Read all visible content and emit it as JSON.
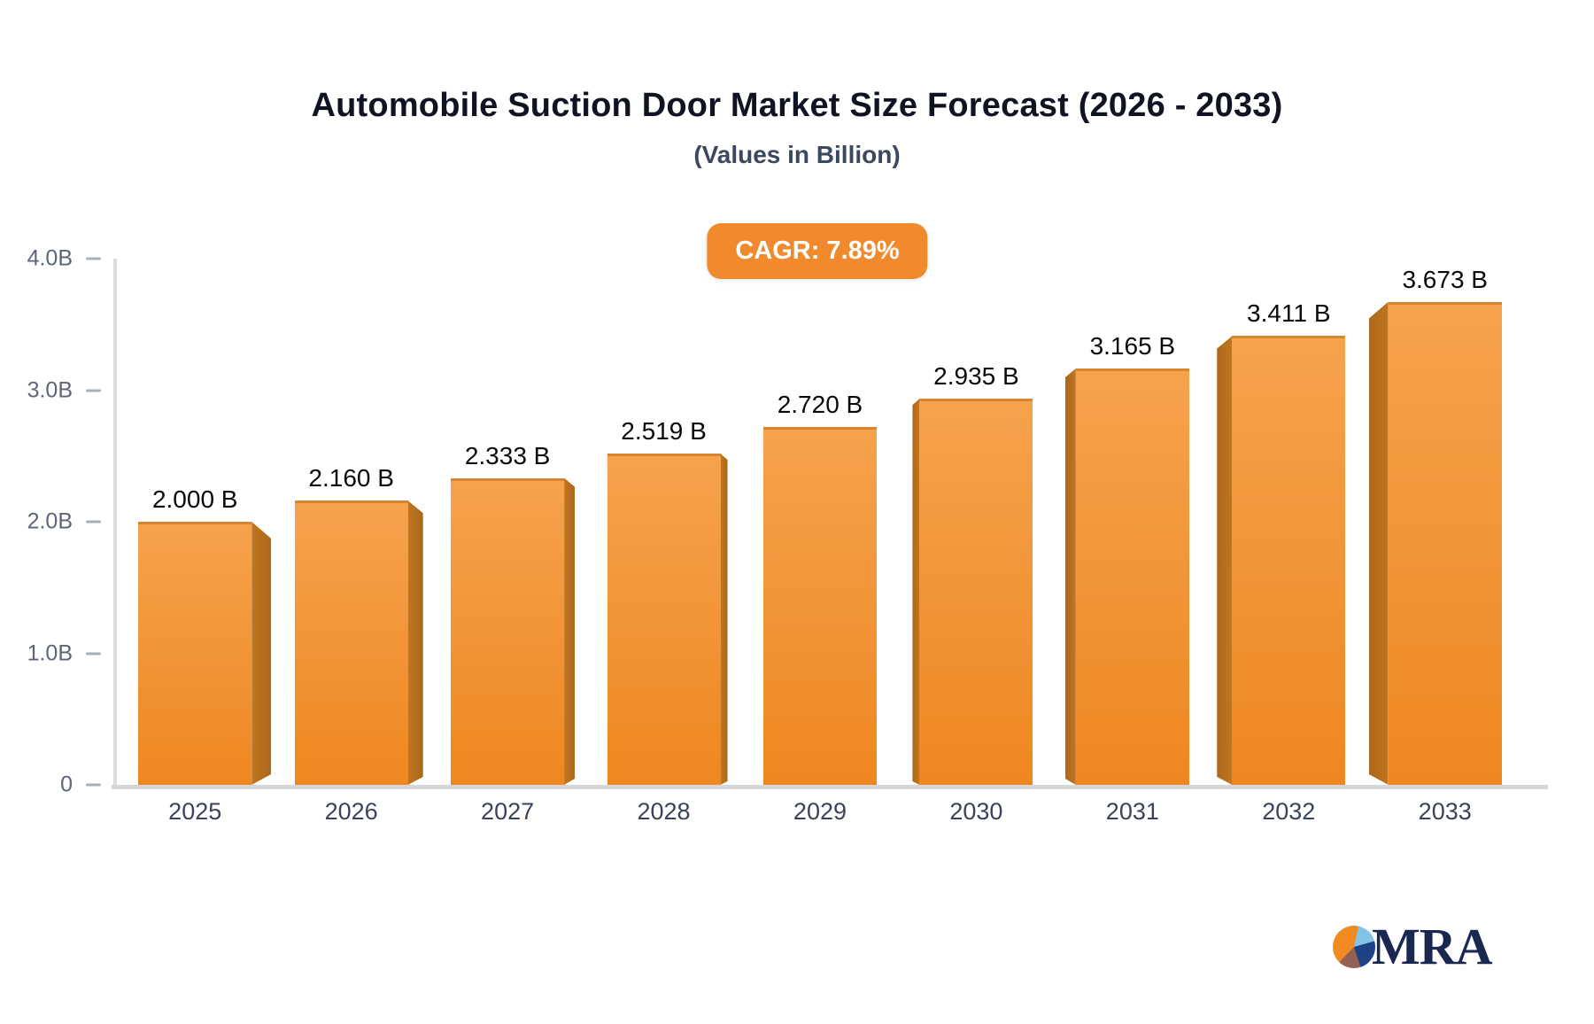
{
  "header": {
    "title": "Automobile Suction Door Market Size Forecast (2026 - 2033)",
    "subtitle": "(Values in Billion)",
    "cagr_badge": "CAGR: 7.89%"
  },
  "chart_data": {
    "type": "bar",
    "title": "Automobile Suction Door Market Size Forecast (2026 - 2033)",
    "subtitle": "(Values in Billion)",
    "annotation": "CAGR: 7.89%",
    "categories": [
      "2025",
      "2026",
      "2027",
      "2028",
      "2029",
      "2030",
      "2031",
      "2032",
      "2033"
    ],
    "values": [
      2.0,
      2.16,
      2.333,
      2.519,
      2.72,
      2.935,
      3.165,
      3.411,
      3.673
    ],
    "value_labels": [
      "2.000 B",
      "2.160 B",
      "2.333 B",
      "2.519 B",
      "2.720 B",
      "2.935 B",
      "3.165 B",
      "3.411 B",
      "3.673 B"
    ],
    "xlabel": "",
    "ylabel": "",
    "ylim": [
      0,
      4
    ],
    "ytick_labels": [
      "4.0B",
      "3.0B",
      "2.0B",
      "1.0B",
      "0"
    ],
    "ytick_values": [
      4,
      3,
      2,
      1,
      0
    ],
    "grid": false,
    "legend": false,
    "style": "3d-extruded-bars-center-perspective",
    "colors": {
      "bar_face": "#F19336",
      "bar_face_light": "#F6A34C",
      "bar_face_deep": "#EF8720",
      "bar_side": "#B56E1E",
      "badge": "#F1892D",
      "axis": "#DCDCE0",
      "tick_label": "#5D6677",
      "x_label": "#39445A",
      "value_label": "#0A0A0A"
    }
  },
  "logo": {
    "text": "MRA",
    "icon_colors": {
      "orange": "#F08A21",
      "light_blue": "#84C3E8",
      "navy": "#1F4287",
      "brown": "#926252"
    }
  }
}
